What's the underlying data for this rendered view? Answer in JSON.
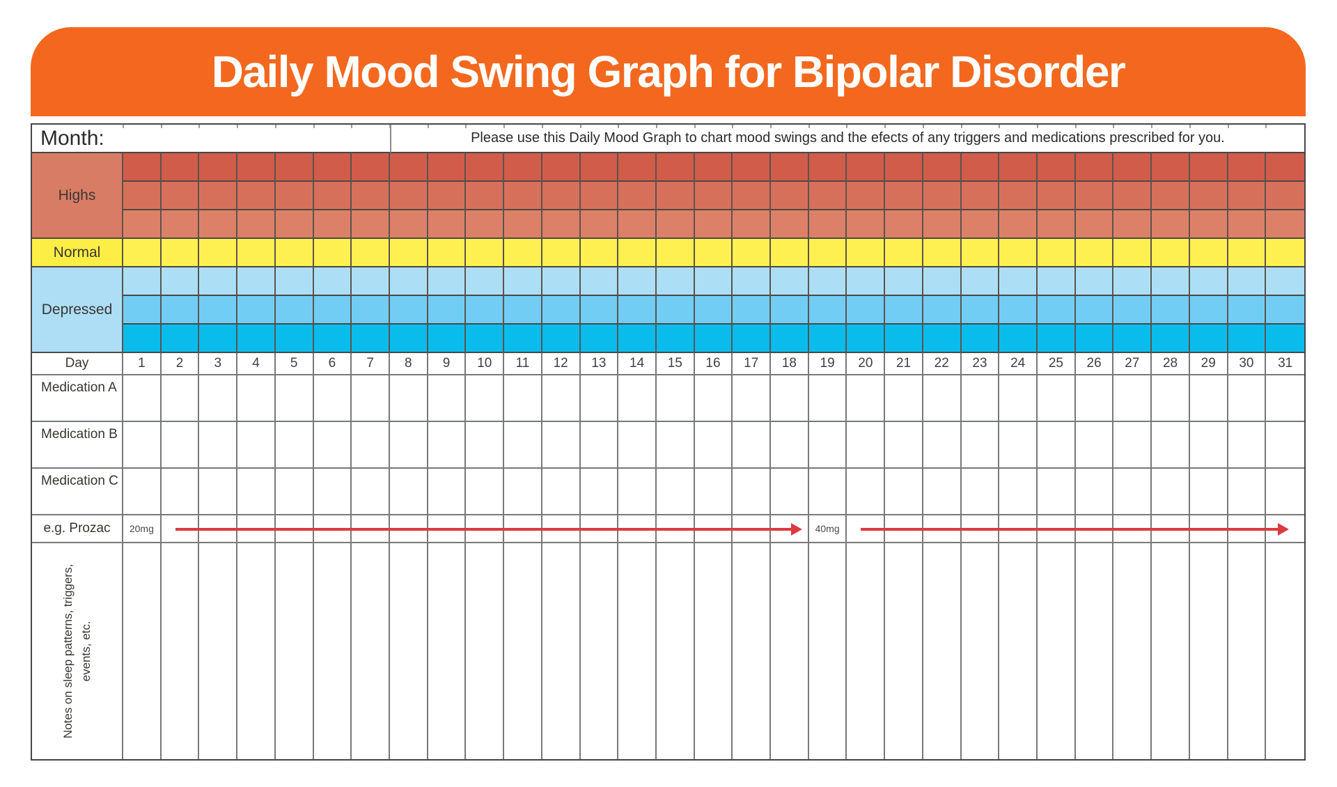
{
  "title": "Daily Mood Swing Graph for Bipolar Disorder",
  "header": {
    "month_label": "Month:",
    "instruction": "Please use this Daily Mood Graph to chart mood swings and the efects of any triggers and medications prescribed for you."
  },
  "mood_scale": {
    "groups": [
      {
        "label": "Highs",
        "rows": 3,
        "label_color": "#D97C65",
        "row_colors": [
          "#D15C4A",
          "#D7705B",
          "#DC8168"
        ]
      },
      {
        "label": "Normal",
        "rows": 1,
        "label_color": "#FCEE45",
        "row_colors": [
          "#FEF050"
        ]
      },
      {
        "label": "Depressed",
        "rows": 3,
        "label_color": "#ADDEF5",
        "row_colors": [
          "#ACDFF6",
          "#71CDF3",
          "#0ABCEC"
        ]
      }
    ]
  },
  "day_row": {
    "label": "Day",
    "days": [
      "1",
      "2",
      "3",
      "4",
      "5",
      "6",
      "7",
      "8",
      "9",
      "10",
      "11",
      "12",
      "13",
      "14",
      "15",
      "16",
      "17",
      "18",
      "19",
      "20",
      "21",
      "22",
      "23",
      "24",
      "25",
      "26",
      "27",
      "28",
      "29",
      "30",
      "31"
    ]
  },
  "medication_rows": [
    "Medication A",
    "Medication B",
    "Medication C"
  ],
  "example_row": {
    "label": "e.g. Prozac",
    "annotations": [
      {
        "day": 1,
        "text": "20mg"
      },
      {
        "day": 19,
        "text": "40mg"
      }
    ],
    "arrows": [
      {
        "from_day": 2,
        "to_day": 18
      },
      {
        "from_day": 20,
        "to_day": 31
      }
    ]
  },
  "notes_row": {
    "label_lines": [
      "Notes on sleep patterns, triggers,",
      "events, etc."
    ]
  },
  "colors": {
    "banner_orange": "#F3681E",
    "arrow_red": "#DB3A3F"
  }
}
